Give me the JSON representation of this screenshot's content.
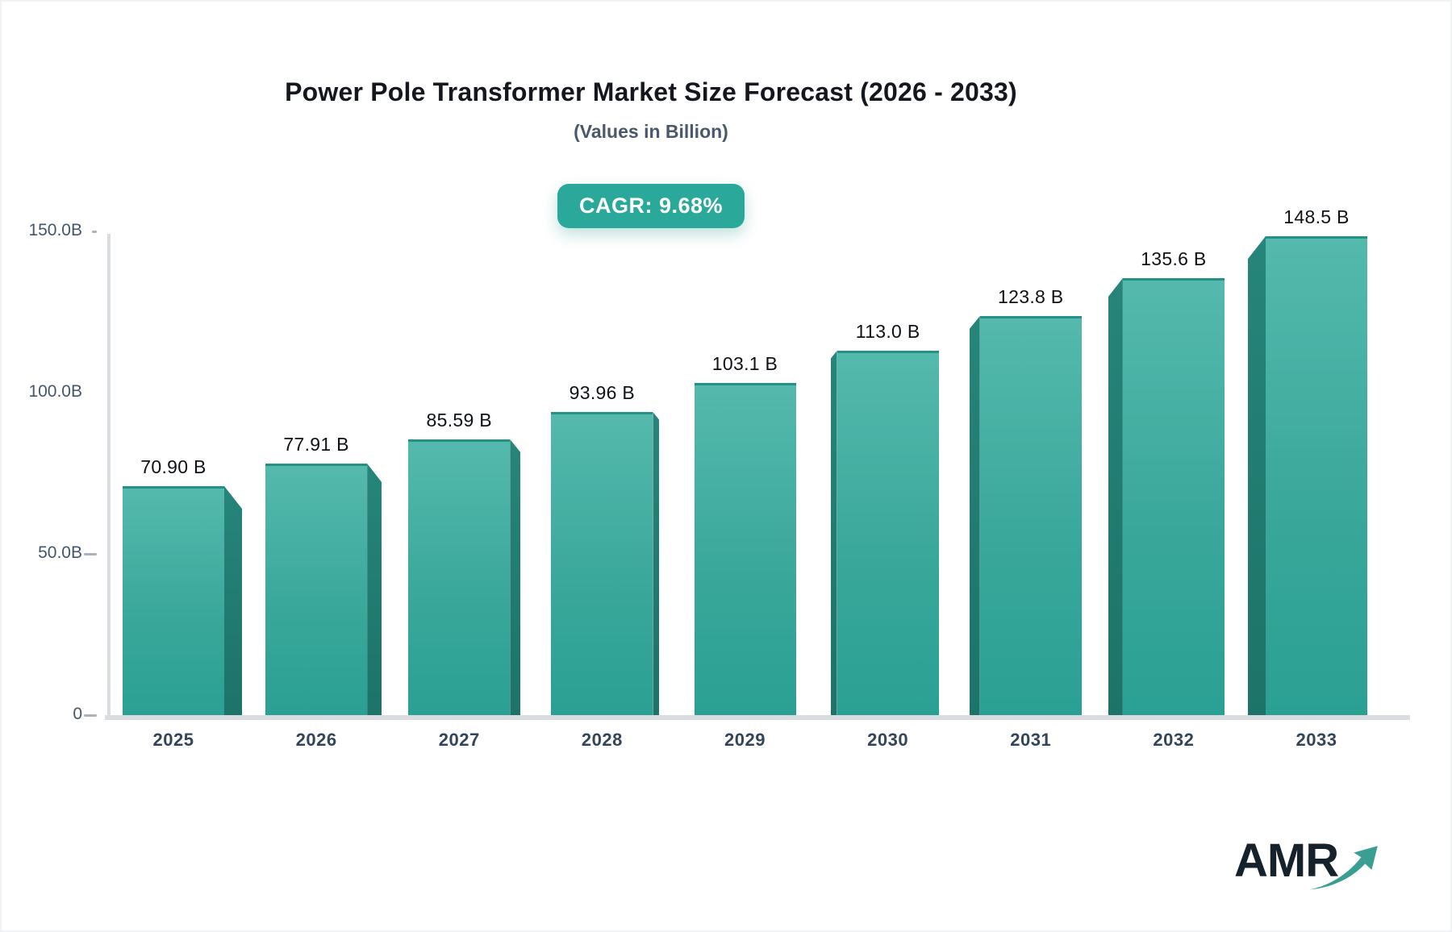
{
  "header": {
    "title": "Power Pole Transformer Market Size Forecast (2026 - 2033)",
    "subtitle": "(Values in Billion)",
    "cagr_badge": {
      "label": "CAGR: 9.68%",
      "background": "#2aa99b",
      "text_color": "#ffffff"
    }
  },
  "chart_data": {
    "type": "bar",
    "title": "Power Pole Transformer Market Size Forecast (2026 - 2033)",
    "subtitle": "(Values in Billion)",
    "categories": [
      "2025",
      "2026",
      "2027",
      "2028",
      "2029",
      "2030",
      "2031",
      "2032",
      "2033"
    ],
    "values": [
      70.9,
      77.91,
      85.59,
      93.96,
      103.1,
      113.0,
      123.8,
      135.6,
      148.5
    ],
    "value_labels": [
      "70.90 B",
      "77.91 B",
      "85.59 B",
      "93.96 B",
      "103.1 B",
      "113.0 B",
      "123.8 B",
      "135.6 B",
      "148.5 B"
    ],
    "xlabel": "",
    "ylabel": "",
    "ylim": [
      0,
      150
    ],
    "y_ticks": [
      {
        "value": 150,
        "label": "150.0B",
        "tick": "dot"
      },
      {
        "value": 100,
        "label": "100.0B",
        "tick": "none"
      },
      {
        "value": 50,
        "label": "50.0B",
        "tick": "dash"
      },
      {
        "value": 0,
        "label": "0",
        "tick": "dash"
      }
    ],
    "grid": false,
    "legend": false,
    "effect": "3d-perspective-bars",
    "colors": {
      "bar_front_top": "#55b9ad",
      "bar_front_bottom": "#2aa093",
      "bar_top_edge": "#239184",
      "bar_side_dark": "#1f7c70",
      "axis_line": "#d9dde1",
      "tick_mark": "#a9b1ba",
      "value_label": "#0e1216",
      "axis_label": "#44566b",
      "category_label": "#33455a"
    }
  },
  "footer": {
    "logo_text": "AMR",
    "logo_color": "#15222c",
    "logo_arrow_color": "#3a9e93"
  }
}
